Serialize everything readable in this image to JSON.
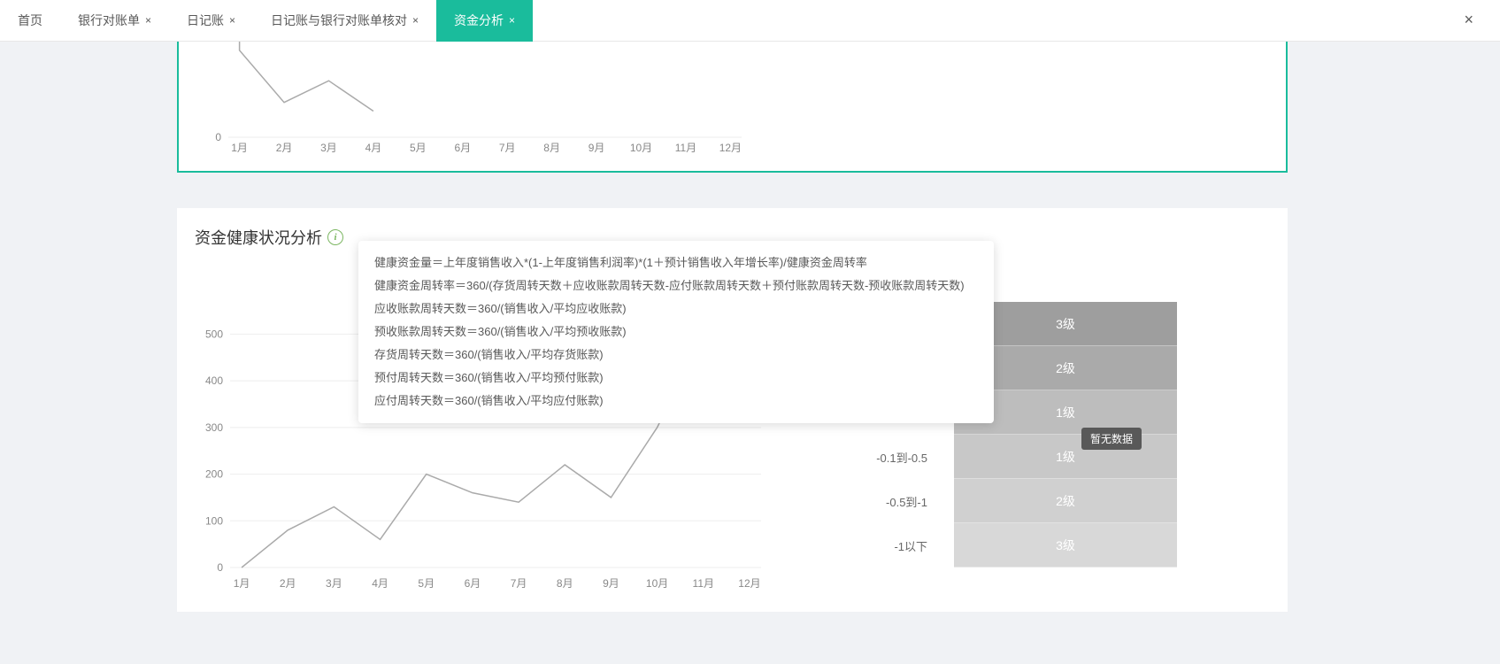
{
  "tabs": {
    "home": "首页",
    "bank": "银行对账单",
    "journal": "日记账",
    "reconcile": "日记账与银行对账单核对",
    "analysis": "资金分析"
  },
  "top_chart": {
    "x_labels": [
      "1月",
      "2月",
      "3月",
      "4月",
      "5月",
      "6月",
      "7月",
      "8月",
      "9月",
      "10月",
      "11月",
      "12月"
    ],
    "y_zero": "0",
    "line_color": "#aaaaaa",
    "partial_line": [
      {
        "x": 0,
        "y": 200
      },
      {
        "x": 1,
        "y": 80
      },
      {
        "x": 2,
        "y": 130
      },
      {
        "x": 3,
        "y": 60
      }
    ],
    "x_max": 12
  },
  "section": {
    "title": "资金健康状况分析"
  },
  "tooltip": {
    "l1": "健康资金量＝上年度销售收入*(1-上年度销售利润率)*(1＋预计销售收入年增长率)/健康资金周转率",
    "l2": "健康资金周转率＝360/(存货周转天数＋应收账款周转天数-应付账款周转天数＋预付账款周转天数-预收账款周转天数)",
    "l3": "应收账款周转天数＝360/(销售收入/平均应收账款)",
    "l4": "预收账款周转天数＝360/(销售收入/平均预收账款)",
    "l5": "存货周转天数＝360/(销售收入/平均存货账款)",
    "l6": "预付周转天数＝360/(销售收入/平均预付账款)",
    "l7": "应付周转天数＝360/(销售收入/平均应付账款)"
  },
  "main_chart": {
    "x_labels": [
      "1月",
      "2月",
      "3月",
      "4月",
      "5月",
      "6月",
      "7月",
      "8月",
      "9月",
      "10月",
      "11月",
      "12月"
    ],
    "y_ticks": [
      0,
      100,
      200,
      300,
      400,
      500
    ],
    "y_max": 550,
    "series": [
      0,
      80,
      130,
      60,
      200,
      160,
      140,
      220,
      150,
      300,
      500,
      340
    ],
    "line_color": "#aaaaaa",
    "grid_color": "#eeeeee",
    "bg": "#ffffff"
  },
  "no_data_label": "暂无数据",
  "levels": [
    {
      "range": "",
      "label": "3级",
      "bg": "#9e9e9e"
    },
    {
      "range": "",
      "label": "2级",
      "bg": "#aaaaaa"
    },
    {
      "range": "0.5-1",
      "label": "1级",
      "bg": "#bdbdbd"
    },
    {
      "range": "-0.1到-0.5",
      "label": "1级",
      "bg": "#c8c8c8"
    },
    {
      "range": "-0.5到-1",
      "label": "2级",
      "bg": "#d0d0d0"
    },
    {
      "range": "-1以下",
      "label": "3级",
      "bg": "#d8d8d8"
    }
  ]
}
